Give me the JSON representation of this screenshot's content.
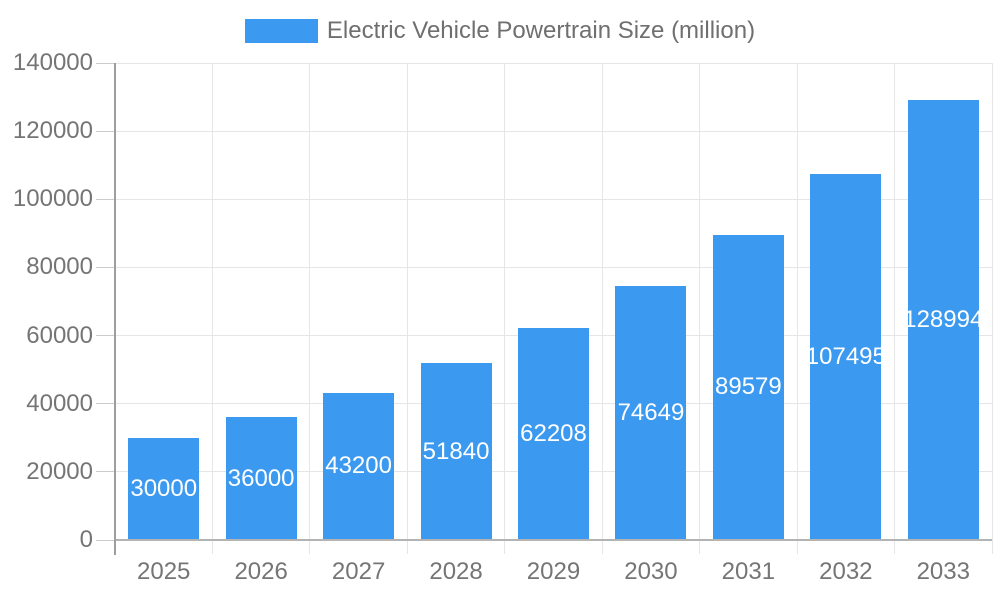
{
  "legend": {
    "label": "Electric Vehicle Powertrain Size (million)"
  },
  "chart_data": {
    "type": "bar",
    "title": "Electric Vehicle Powertrain Size (million)",
    "categories": [
      "2025",
      "2026",
      "2027",
      "2028",
      "2029",
      "2030",
      "2031",
      "2032",
      "2033"
    ],
    "values": [
      30000,
      36000,
      43200,
      51840,
      62208,
      74649,
      89579,
      107495,
      128994
    ],
    "bar_labels": [
      "30000",
      "36000",
      "43200",
      "51840",
      "62208",
      "74649",
      "89579",
      "107495",
      "128994"
    ],
    "xlabel": "",
    "ylabel": "",
    "ylim": [
      0,
      140000
    ],
    "ytick_step": 20000,
    "ytick_labels": [
      "0",
      "20000",
      "40000",
      "60000",
      "80000",
      "100000",
      "120000",
      "140000"
    ],
    "grid": true,
    "legend_position": "top"
  },
  "colors": {
    "bar": "#3B99F0",
    "grid": "#e6e6e6",
    "axis_line": "#9e9e9e",
    "baseline": "#b3b3b3",
    "tick": "#cccccc",
    "bottom_tick": "#e0e0e0",
    "axis_text": "#757575",
    "legend_text": "#6f6f6f",
    "bar_label": "#ffffff",
    "background": "#ffffff"
  }
}
